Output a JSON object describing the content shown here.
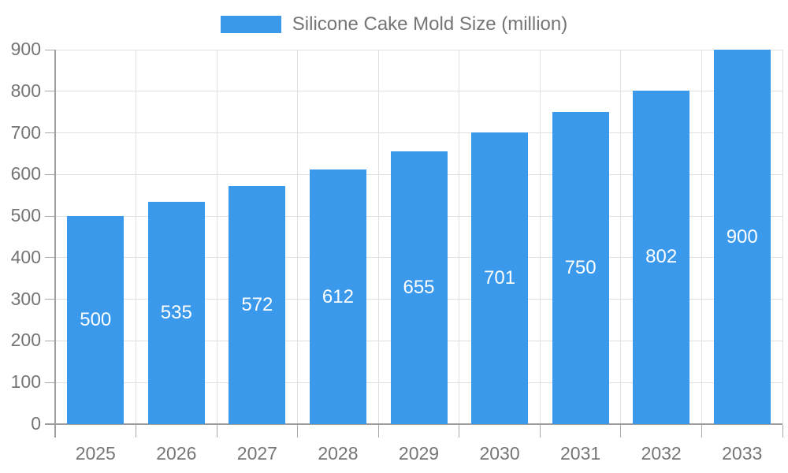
{
  "legend": {
    "label": "Silicone Cake Mold Size (million)"
  },
  "colors": {
    "bar": "#3b99ec",
    "grid": "#e0e0e0",
    "axis": "#9e9e9e",
    "tick_text": "#757575",
    "bar_label_text": "#ffffff"
  },
  "chart_data": {
    "type": "bar",
    "title": "Silicone Cake Mold Size (million)",
    "categories": [
      "2025",
      "2026",
      "2027",
      "2028",
      "2029",
      "2030",
      "2031",
      "2032",
      "2033"
    ],
    "values": [
      500,
      535,
      572,
      612,
      655,
      701,
      750,
      802,
      900
    ],
    "xlabel": "",
    "ylabel": "",
    "ylim": [
      0,
      900
    ],
    "ytick_step": 100,
    "y_tick_labels": [
      "0",
      "100",
      "200",
      "300",
      "400",
      "500",
      "600",
      "700",
      "800",
      "900"
    ],
    "grid": true,
    "legend_position": "top-center",
    "bar_labels_inside": true
  }
}
